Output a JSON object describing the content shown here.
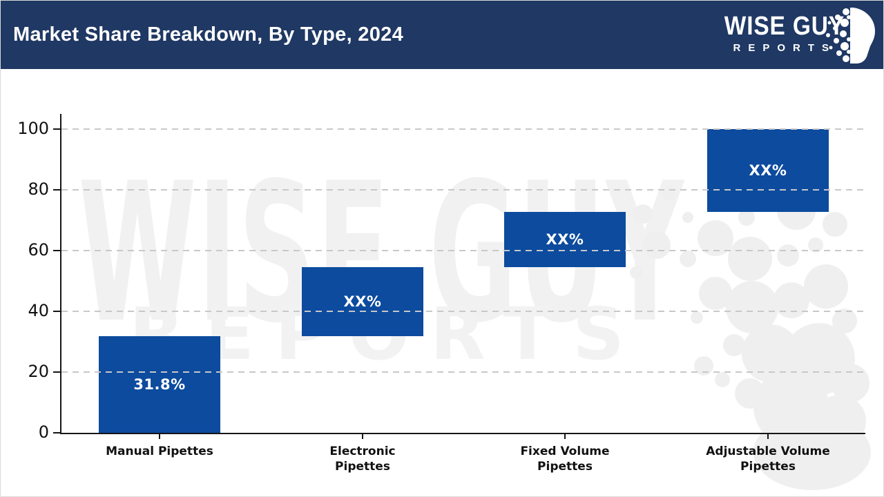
{
  "header": {
    "title": "Market Share Breakdown, By Type, 2024",
    "background_color": "#1f3864",
    "logo": {
      "name": "WISE GUY",
      "tagline": "REPORTS"
    }
  },
  "watermark": {
    "line1": "WISE GUY",
    "line2": "REPORTS"
  },
  "chart_data": {
    "type": "bar",
    "subtype": "waterfall",
    "title": "Market Share Breakdown, By Type, 2024",
    "categories": [
      "Manual Pipettes",
      "Electronic Pipettes",
      "Fixed Volume Pipettes",
      "Adjustable Volume Pipettes"
    ],
    "category_lines": [
      [
        "Manual Pipettes"
      ],
      [
        "Electronic",
        "Pipettes"
      ],
      [
        "Fixed Volume",
        "Pipettes"
      ],
      [
        "Adjustable Volume",
        "Pipettes"
      ]
    ],
    "segments": [
      {
        "category": "Manual Pipettes",
        "start": 0,
        "end": 31.8,
        "value": 31.8,
        "label": "31.8%"
      },
      {
        "category": "Electronic Pipettes",
        "start": 31.8,
        "end": 54.5,
        "value": 22.7,
        "label": "XX%"
      },
      {
        "category": "Fixed Volume Pipettes",
        "start": 54.5,
        "end": 72.7,
        "value": 18.2,
        "label": "XX%"
      },
      {
        "category": "Adjustable Volume Pipettes",
        "start": 72.7,
        "end": 100,
        "value": 27.3,
        "label": "XX%"
      }
    ],
    "yticks": [
      0,
      20,
      40,
      60,
      80,
      100
    ],
    "ylim": [
      0,
      105
    ],
    "xlabel": "",
    "ylabel": "",
    "grid": {
      "axis": "y",
      "style": "dashed",
      "color": "#c8c8c8"
    },
    "legend": "none",
    "bar_color": "#0c4b9e",
    "bar_label_color": "#ffffff",
    "axis_color": "#151515"
  }
}
